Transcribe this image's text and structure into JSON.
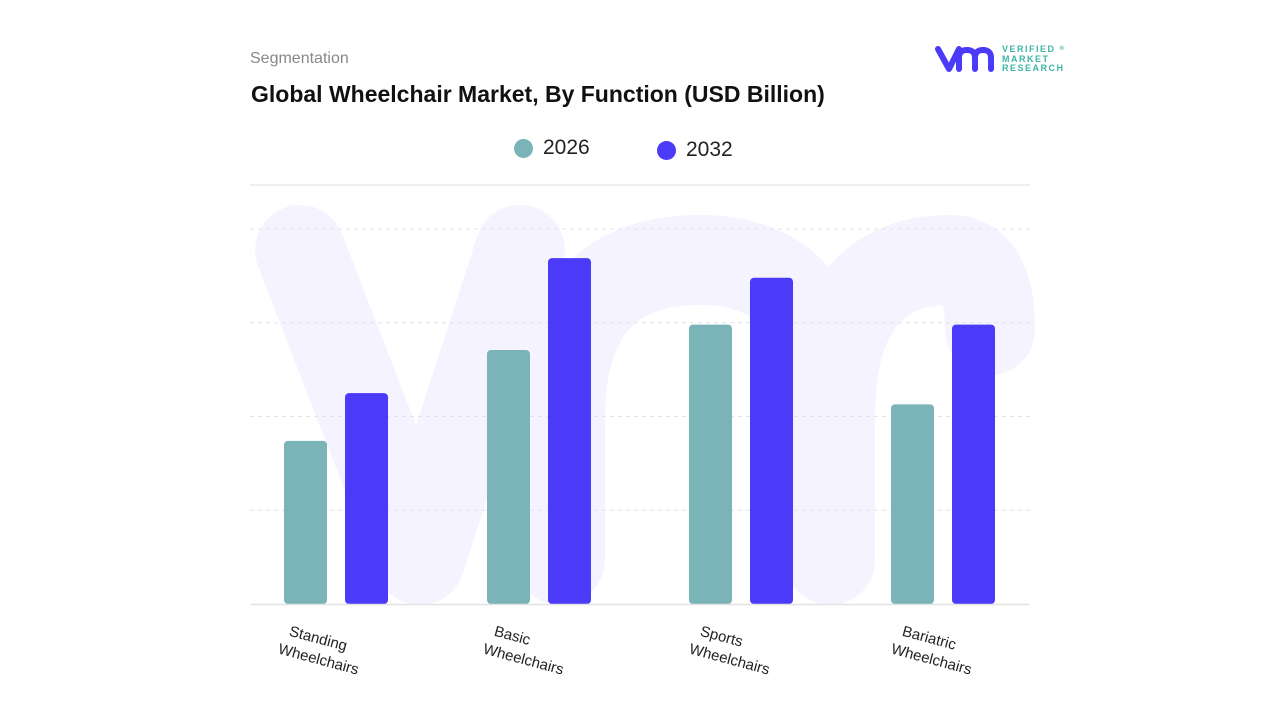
{
  "header": {
    "segment_label": "Segmentation",
    "title": "Global Wheelchair Market, By Function (USD Billion)"
  },
  "logo": {
    "text_line1": "VERIFIED",
    "text_line2": "MARKET",
    "text_line3": "RESEARCH",
    "registered": "®"
  },
  "chart_data": {
    "type": "bar",
    "title": "Global Wheelchair Market, By Function (USD Billion)",
    "categories": [
      "Standing Wheelchairs",
      "Basic Wheelchairs",
      "Sports Wheelchairs",
      "Bariatric Wheelchairs"
    ],
    "category_lines": [
      [
        "Standing",
        "Wheelchairs"
      ],
      [
        "Basic",
        "Wheelchairs"
      ],
      [
        "Sports",
        "Wheelchairs"
      ],
      [
        "Bariatric",
        "Wheelchairs"
      ]
    ],
    "series": [
      {
        "name": "2026",
        "color": "#7ab4b8",
        "values": [
          1.74,
          2.71,
          2.98,
          2.13
        ]
      },
      {
        "name": "2032",
        "color": "#4b3af7",
        "values": [
          2.25,
          3.69,
          3.48,
          2.98
        ]
      }
    ],
    "ylim": [
      0,
      4.47
    ],
    "y_ticks_unlabeled": [
      1,
      2,
      3,
      4
    ],
    "grid": true,
    "legend": "top-center",
    "xlabel": "",
    "ylabel": ""
  }
}
